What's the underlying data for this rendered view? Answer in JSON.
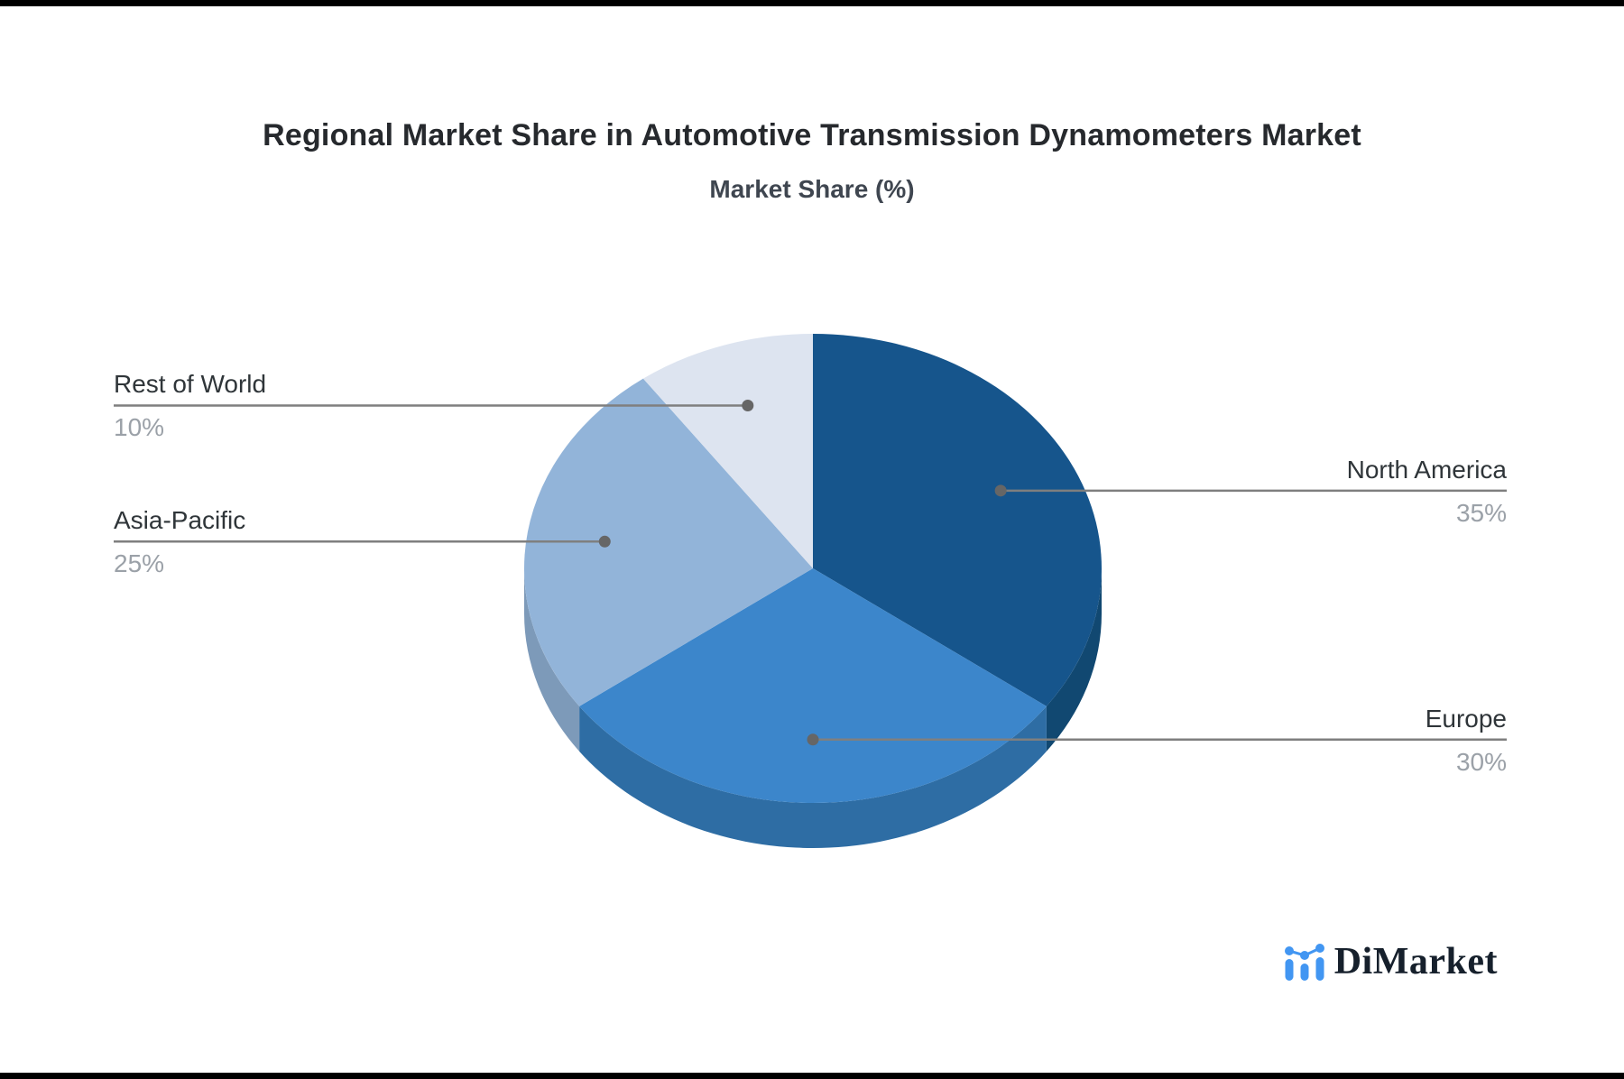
{
  "page": {
    "background": "#ffffff",
    "top_border_color": "#000000",
    "bottom_border_color": "#000000"
  },
  "chart_data": {
    "type": "pie",
    "style": "3d",
    "title": "Regional Market Share in Automotive Transmission Dynamometers Market",
    "subtitle": "Market Share (%)",
    "unit": "%",
    "start_angle": "12-oclock",
    "clockwise": true,
    "legend_position": "none",
    "slices": [
      {
        "label": "North America",
        "value": 35,
        "pct_text": "35%",
        "color": "#16558C",
        "side_color": "#114871",
        "label_side": "right"
      },
      {
        "label": "Europe",
        "value": 30,
        "pct_text": "30%",
        "color": "#3C86CB",
        "side_color": "#2E6DA4",
        "label_side": "right"
      },
      {
        "label": "Asia-Pacific",
        "value": 25,
        "pct_text": "25%",
        "color": "#92B4D9",
        "side_color": "#7D9AB9",
        "label_side": "left"
      },
      {
        "label": "Rest of World",
        "value": 10,
        "pct_text": "10%",
        "color": "#DDE4F0",
        "side_color": "#C8D1E0",
        "label_side": "left"
      }
    ],
    "leader_line_color": "#7F7F7F",
    "leader_dot_color": "#666666",
    "label_color": "#2F3539",
    "pct_color": "#9BA1A8"
  },
  "branding": {
    "logo_text": "DiMarket",
    "logo_icon": "bar-chart-logo-icon",
    "logo_icon_color": "#4296F2",
    "logo_text_color": "#16202C"
  }
}
